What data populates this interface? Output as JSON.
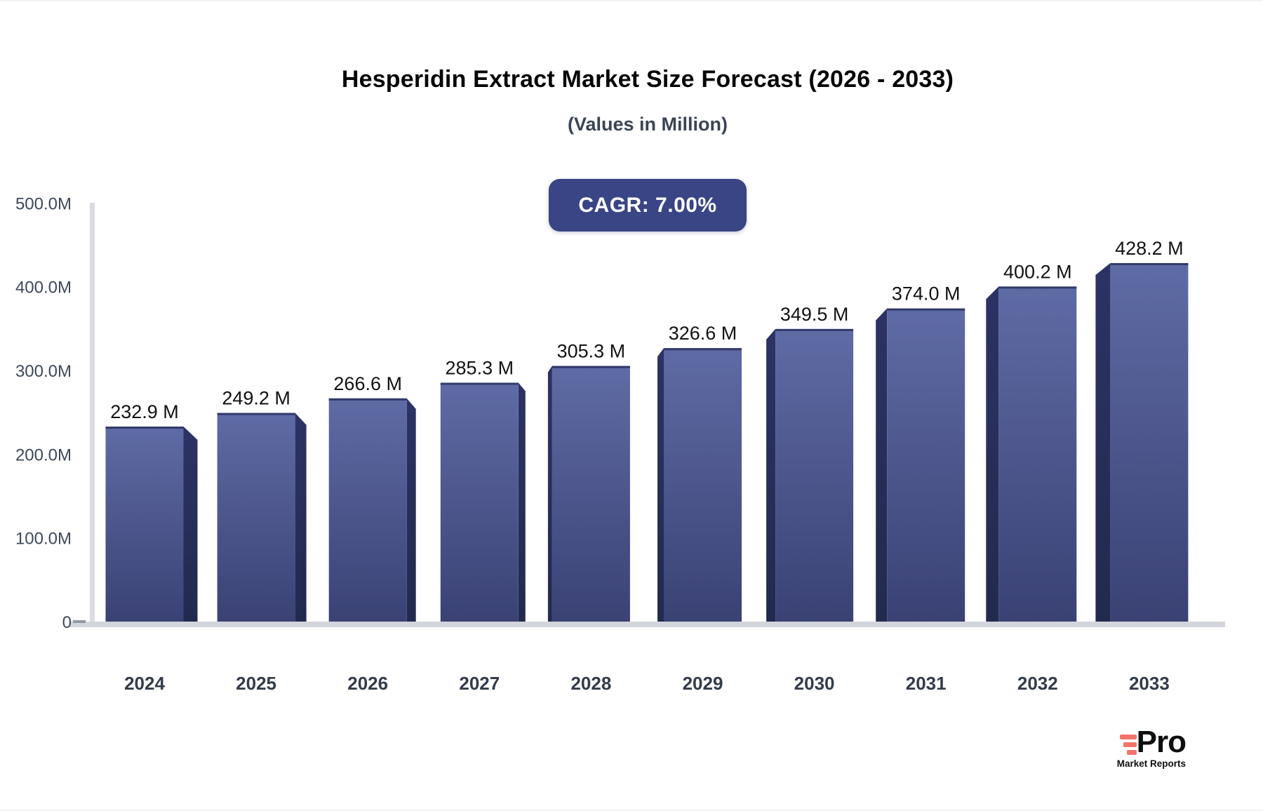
{
  "header": {
    "title": "Hesperidin Extract Market Size Forecast (2026 - 2033)",
    "subtitle": "(Values in Million)",
    "cagr_badge": "CAGR: 7.00%"
  },
  "chart_data": {
    "type": "bar",
    "title": "Hesperidin Extract Market Size Forecast (2026 - 2033)",
    "subtitle": "(Values in Million)",
    "cagr_percent": 7.0,
    "categories": [
      "2024",
      "2025",
      "2026",
      "2027",
      "2028",
      "2029",
      "2030",
      "2031",
      "2032",
      "2033"
    ],
    "values": [
      232.9,
      249.2,
      266.6,
      285.3,
      305.3,
      326.6,
      349.5,
      374.0,
      400.2,
      428.2
    ],
    "value_labels": [
      "232.9 M",
      "249.2 M",
      "266.6 M",
      "285.3 M",
      "305.3 M",
      "326.6 M",
      "349.5 M",
      "374.0 M",
      "400.2 M",
      "428.2 M"
    ],
    "unit": "Million",
    "ylim": [
      0,
      500
    ],
    "y_ticks": [
      {
        "label": "0",
        "value": 0
      },
      {
        "label": "100.0M",
        "value": 100
      },
      {
        "label": "200.0M",
        "value": 200
      },
      {
        "label": "300.0M",
        "value": 300
      },
      {
        "label": "400.0M",
        "value": 400
      },
      {
        "label": "500.0M",
        "value": 500
      }
    ],
    "grid": false,
    "legend": "none",
    "colors": {
      "bar_face_top": "#5f6ba5",
      "bar_face_bottom": "#3a4274",
      "bar_side_top": "#2c3365",
      "bar_side_bottom": "#222a4e",
      "bar_top_edge": "#323a6b",
      "axis_line": "#d9dbe0",
      "baseline": "#d2d5db",
      "tick_dash": "#9199a3",
      "y_label": "#3e495b",
      "x_label": "#333c4a",
      "value_label": "#121212",
      "badge_bg": "#3a4585"
    }
  },
  "logo": {
    "name": "Pro",
    "tagline": "Market Reports",
    "accent": "#f4736b"
  }
}
